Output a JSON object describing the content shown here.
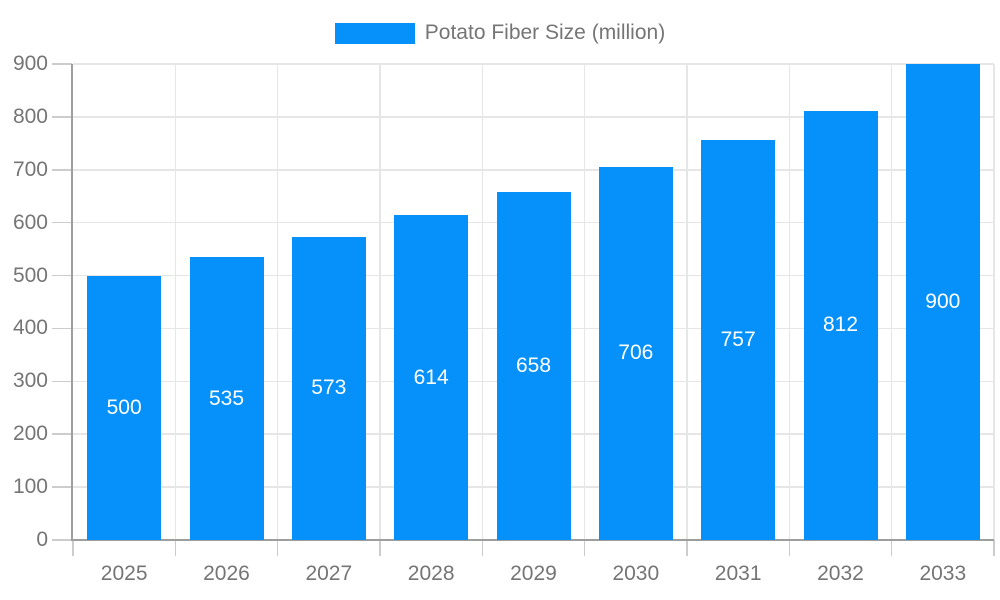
{
  "chart_data": {
    "type": "bar",
    "title": "Potato Fiber Size (million)",
    "legend": [
      "Potato Fiber Size (million)"
    ],
    "legend_position": "top-center",
    "categories": [
      "2025",
      "2026",
      "2027",
      "2028",
      "2029",
      "2030",
      "2031",
      "2032",
      "2033"
    ],
    "series": [
      {
        "name": "Potato Fiber Size (million)",
        "values": [
          500,
          535,
          573,
          614,
          658,
          706,
          757,
          812,
          900
        ]
      }
    ],
    "value_labels_shown": true,
    "xlabel": "",
    "ylabel": "",
    "ylim": [
      0,
      900
    ],
    "ytick_interval": 100,
    "yticks": [
      0,
      100,
      200,
      300,
      400,
      500,
      600,
      700,
      800,
      900
    ],
    "grid": true,
    "colors": {
      "bar": "#0690FA",
      "grid_line": "#e6e6e6",
      "axis_line": "#9e9e9e",
      "tick_line": "#cccccc",
      "axis_label_text": "#757575",
      "value_label_text": "#ffffff",
      "background": "#ffffff"
    }
  }
}
